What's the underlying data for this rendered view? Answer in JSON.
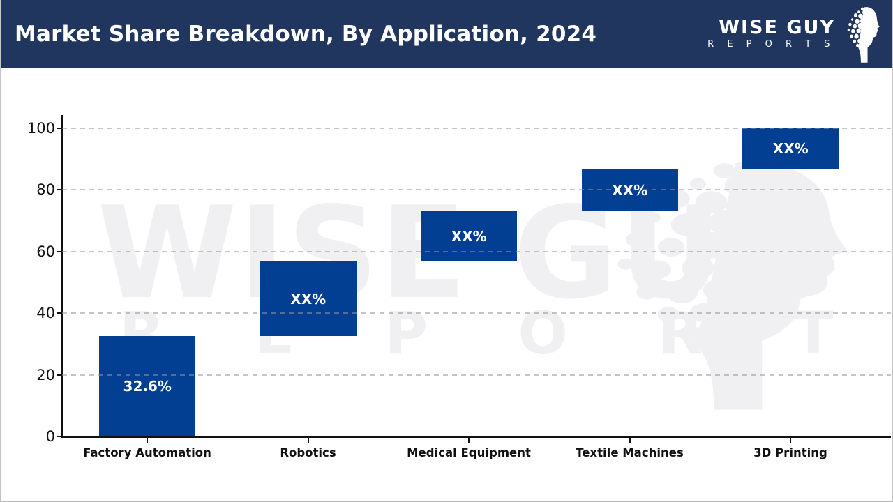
{
  "header": {
    "title": "Market Share Breakdown, By Application, 2024",
    "bg_color": "#21365f",
    "logo": {
      "wordmark": "WISE GUY",
      "subtext": "R E P O R T S"
    }
  },
  "watermark": {
    "wordmark": "WISE GUY",
    "subtext": "R E P O R T S"
  },
  "chart_data": {
    "type": "bar",
    "subtype": "floating-waterfall",
    "title": "Market Share Breakdown, By Application, 2024",
    "categories": [
      "Factory Automation",
      "Robotics",
      "Medical Equipment",
      "Textile Machines",
      "3D Printing"
    ],
    "series": [
      {
        "name": "Market Share",
        "segments": [
          {
            "category": "Factory Automation",
            "start": 0,
            "end": 32.6,
            "label": "32.6%"
          },
          {
            "category": "Robotics",
            "start": 32.6,
            "end": 56.7,
            "label": "XX%"
          },
          {
            "category": "Medical Equipment",
            "start": 56.7,
            "end": 73.0,
            "label": "XX%"
          },
          {
            "category": "Textile Machines",
            "start": 73.0,
            "end": 86.9,
            "label": "XX%"
          },
          {
            "category": "3D Printing",
            "start": 86.9,
            "end": 100,
            "label": "XX%"
          }
        ]
      }
    ],
    "xlabel": "",
    "ylabel": "",
    "ylim": [
      0,
      104
    ],
    "yticks": [
      0,
      20,
      40,
      60,
      80,
      100
    ],
    "grid": "horizontal-dashed",
    "legend": "none",
    "bar_color": "#023e92",
    "bar_label_color": "#ffffff",
    "axis_color": "#111111"
  }
}
